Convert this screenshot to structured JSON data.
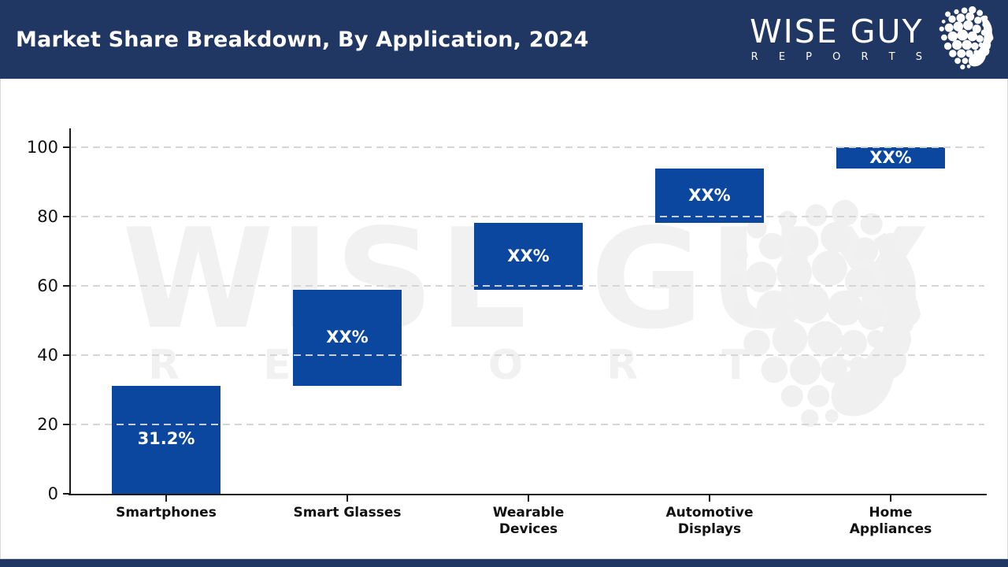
{
  "header": {
    "title": "Market Share Breakdown, By Application, 2024",
    "logo": {
      "line1": "WISE GUY",
      "line2": "R E P O R T S"
    }
  },
  "watermark": {
    "line1": "WISE GUY",
    "line2": "R E P O R T S"
  },
  "chart_data": {
    "type": "bar",
    "subtype": "waterfall",
    "title": "Market Share Breakdown, By Application, 2024",
    "categories": [
      "Smartphones",
      "Smart Glasses",
      "Wearable Devices",
      "Automotive Displays",
      "Home Appliances"
    ],
    "segments": [
      {
        "category": "Smartphones",
        "start": 0,
        "end": 31.2,
        "label": "31.2%"
      },
      {
        "category": "Smart Glasses",
        "start": 31.2,
        "end": 58.8,
        "label": "XX%"
      },
      {
        "category": "Wearable Devices",
        "start": 58.8,
        "end": 78.2,
        "label": "XX%"
      },
      {
        "category": "Automotive Displays",
        "start": 78.2,
        "end": 93.8,
        "label": "XX%"
      },
      {
        "category": "Home Appliances",
        "start": 93.8,
        "end": 100,
        "label": "XX%"
      }
    ],
    "xlabel": "",
    "ylabel": "",
    "ylim": [
      0,
      100
    ],
    "yticks": [
      0,
      20,
      40,
      60,
      80,
      100
    ],
    "grid": "horizontal-dashed, drawn above bars",
    "legend": "none",
    "colors": {
      "bar": "#0c479f",
      "bar_label": "#ffffff",
      "header_bg": "#203663",
      "footer_bg": "#203663",
      "axis": "#1a1a1a",
      "gridline": "#d4d4d4",
      "watermark": "#f1f1f1"
    }
  }
}
